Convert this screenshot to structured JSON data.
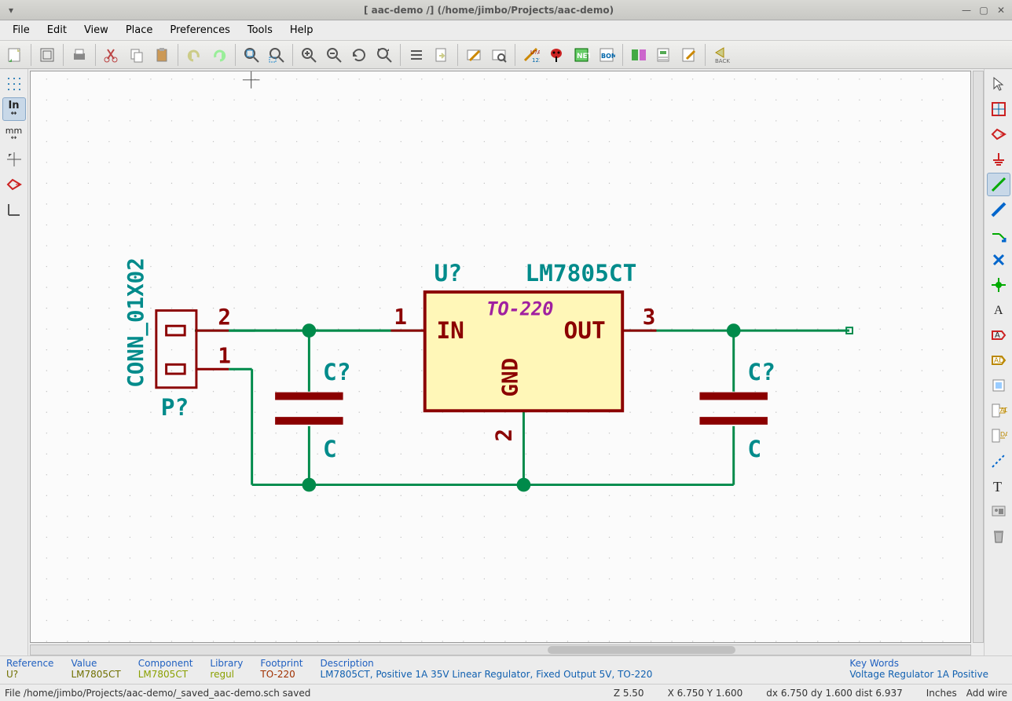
{
  "window": {
    "title": "[ aac-demo /] (/home/jimbo/Projects/aac-demo)"
  },
  "menu": {
    "items": [
      "File",
      "Edit",
      "View",
      "Place",
      "Preferences",
      "Tools",
      "Help"
    ]
  },
  "toolbar": {
    "icons": [
      "new",
      "open",
      "print",
      "cut",
      "copy",
      "paste",
      "undo",
      "redo",
      "zoomfit",
      "zoomwin",
      "zoomin",
      "zoomout",
      "zoomrefresh",
      "zoomauto",
      "hier",
      "sheet",
      "ercheck",
      "erclist",
      "annotate",
      "bugcheck",
      "netlist",
      "net",
      "bom",
      "footprint",
      "libs",
      "run",
      "back"
    ]
  },
  "lefttools": {
    "icons": [
      "grid",
      "inch",
      "mm",
      "cursor",
      "opamp",
      "hier-nav"
    ]
  },
  "righttools": {
    "icons": [
      "arrow",
      "highlight",
      "opamp",
      "power",
      "wire",
      "bus",
      "busentry",
      "noconnect",
      "junction",
      "label",
      "glabel",
      "hlabel",
      "sheet",
      "sheetpin",
      "glabelimp",
      "dline",
      "text",
      "image",
      "trash"
    ]
  },
  "lefttool_labels": {
    "inch": "In",
    "mm": "mm"
  },
  "schematic": {
    "colors": {
      "wire_green": "#008a4a",
      "component_darkred": "#8b0000",
      "teal_text": "#008b8b",
      "purple": "#a020a0",
      "node_fill": "#008a4a",
      "ic_fill": "#fff7b8",
      "grid_dot": "#c0c0c0"
    },
    "connector": {
      "ref": "P?",
      "value": "CONN_01X02",
      "pin1": "1",
      "pin2": "2"
    },
    "ic": {
      "ref": "U?",
      "value": "LM7805CT",
      "footprint": "TO-220",
      "pin_in": "IN",
      "pin_out": "OUT",
      "pin_gnd": "GND",
      "pin1_num": "1",
      "pin2_num": "2",
      "pin3_num": "3"
    },
    "cap1": {
      "ref": "C?",
      "value": "C"
    },
    "cap2": {
      "ref": "C?",
      "value": "C"
    }
  },
  "info": {
    "cols": [
      {
        "h": "Reference",
        "v": "U?"
      },
      {
        "h": "Value",
        "v": "LM7805CT"
      },
      {
        "h": "Component",
        "v": "LM7805CT"
      },
      {
        "h": "Library",
        "v": "regul"
      },
      {
        "h": "Footprint",
        "v": "TO-220"
      },
      {
        "h": "Description",
        "v": "LM7805CT, Positive 1A 35V Linear Regulator, Fixed Output 5V, TO-220"
      },
      {
        "h": "Key Words",
        "v": "Voltage Regulator 1A Positive"
      }
    ]
  },
  "status": {
    "left": "File /home/jimbo/Projects/aac-demo/_saved_aac-demo.sch saved",
    "z": "Z 5.50",
    "xy": "X 6.750  Y 1.600",
    "dxy": "dx 6.750  dy 1.600  dist 6.937",
    "units": "Inches",
    "mode": "Add wire"
  }
}
